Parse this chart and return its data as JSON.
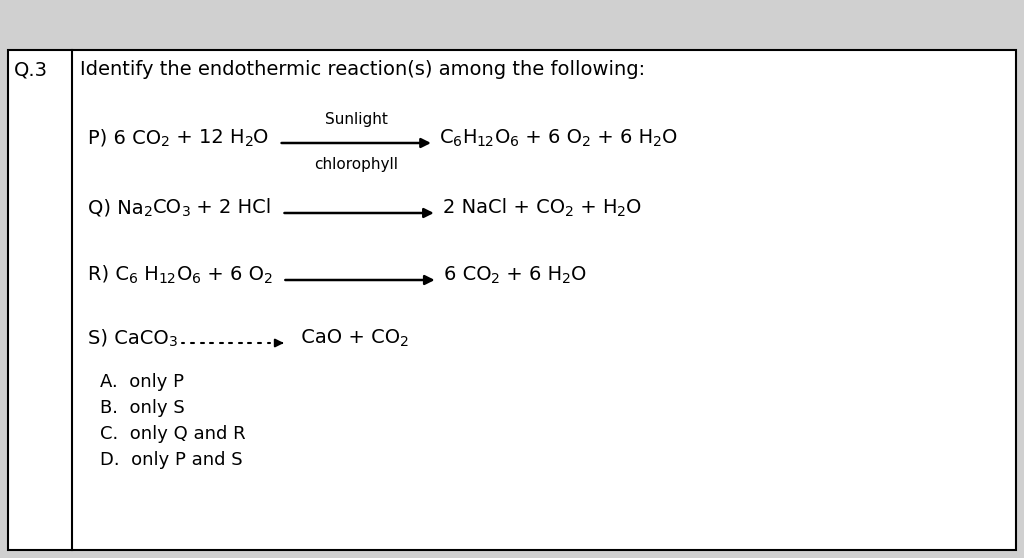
{
  "bg_color": "#ffffff",
  "outer_bg": "#d0d0d0",
  "border_color": "#000000",
  "text_color": "#000000",
  "question_number": "Q.3",
  "question_text": "Identify the endothermic reaction(s) among the following:",
  "arrow_above": "Sunlight",
  "arrow_below": "chlorophyll",
  "options": [
    "A.  only P",
    "B.  only S",
    "C.  only Q and R",
    "D.  only P and S"
  ],
  "font_size_question": 14,
  "font_size_reactions": 14,
  "font_size_options": 13,
  "font_size_small": 11
}
